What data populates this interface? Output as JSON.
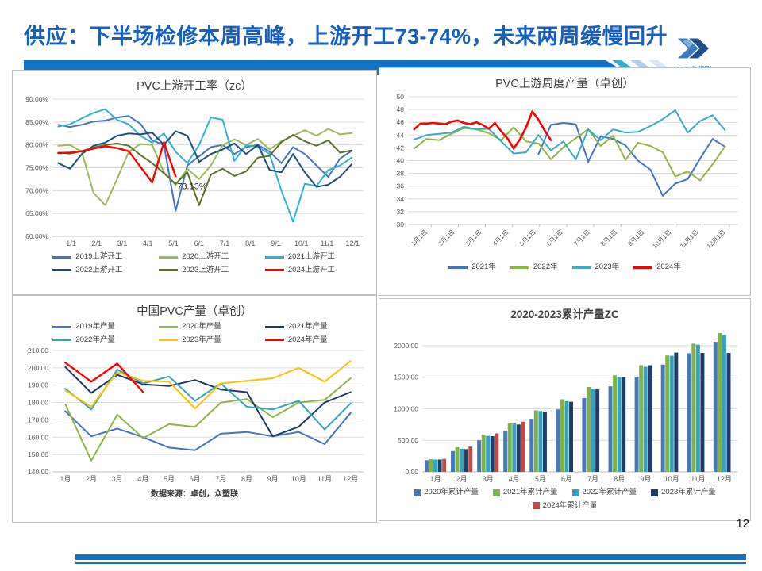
{
  "slide": {
    "title": "供应：下半场检修本周高峰，上游开工73-74%，未来两周缓慢回升",
    "page_number": "12",
    "logo_text": "UPA众塑联",
    "accent_color": "#1273C4"
  },
  "chart_data": [
    {
      "type": "line",
      "title": "PVC上游开工率（zc）",
      "ylabel": "",
      "xlabel": "",
      "ylim": [
        60,
        90
      ],
      "ytick_step": 5,
      "ytick_format": "pct",
      "xlim": [
        0,
        53
      ],
      "x_tick_labels": [
        "1/1",
        "2/1",
        "3/1",
        "4/1",
        "5/1",
        "6/1",
        "7/1",
        "8/1",
        "9/1",
        "10/1",
        "11/1",
        "12/1"
      ],
      "x_tick_start": 1,
      "x_tick_step": 4.36,
      "annotation": {
        "text": "73.13%",
        "x": 21,
        "y": 73.13,
        "dx": 2,
        "dy": 16
      },
      "legend": {
        "position": "bottom",
        "swatch": "line",
        "cols": 3
      },
      "series": [
        {
          "name": "2019上游开工",
          "color": "#4472C4",
          "x0": 1,
          "dx": 2,
          "y": [
            84.4,
            83.9,
            84.4,
            85.1,
            85.3,
            86.0,
            86.3,
            84.6,
            81.0,
            80.0,
            65.6,
            75.5,
            77.5,
            79.5,
            80.0,
            78.0,
            79.5,
            80.0,
            78.5,
            76.0,
            79.5,
            78.0,
            75.5,
            73.0,
            77.0,
            78.7
          ]
        },
        {
          "name": "2020上游开工",
          "color": "#9BBB59",
          "x0": 1,
          "dx": 2,
          "y": [
            79.8,
            80.0,
            78.5,
            69.5,
            66.8,
            72.5,
            78.5,
            80.2,
            80.0,
            74.0,
            71.2,
            74.8,
            72.5,
            75.5,
            80.0,
            81.2,
            80.0,
            81.3,
            79.0,
            80.8,
            82.0,
            83.2,
            82.0,
            83.5,
            82.3,
            82.6
          ]
        },
        {
          "name": "2021上游开工",
          "color": "#2FB3D4",
          "x0": 1,
          "dx": 2,
          "y": [
            84.0,
            84.5,
            85.8,
            87.0,
            87.8,
            85.5,
            84.5,
            82.0,
            80.5,
            82.5,
            78.5,
            76.0,
            80.0,
            86.0,
            85.5,
            76.5,
            80.0,
            79.5,
            78.0,
            70.0,
            63.2,
            71.5,
            71.0,
            74.5,
            75.5,
            77.2
          ]
        },
        {
          "name": "2022上游开工",
          "color": "#1F4E79",
          "x0": 1,
          "dx": 2,
          "y": [
            76.0,
            74.8,
            78.0,
            79.8,
            80.5,
            82.0,
            82.5,
            82.3,
            82.7,
            80.0,
            83.0,
            82.0,
            76.3,
            78.0,
            79.0,
            80.3,
            78.0,
            80.0,
            74.5,
            74.0,
            78.0,
            74.0,
            70.8,
            71.3,
            73.0,
            75.8
          ]
        },
        {
          "name": "2023上游开工",
          "color": "#5A7228",
          "x0": 1,
          "dx": 2,
          "y": [
            78.3,
            78.1,
            78.6,
            79.4,
            80.0,
            80.3,
            79.8,
            77.8,
            76.0,
            73.8,
            71.5,
            74.0,
            66.8,
            73.5,
            74.8,
            73.2,
            74.2,
            77.2,
            77.6,
            80.6,
            82.2,
            80.8,
            79.8,
            81.0,
            78.3,
            78.8
          ]
        },
        {
          "name": "2024上游开工",
          "color": "#FF0000",
          "x0": 1,
          "dx": 2,
          "width": 2.4,
          "y": [
            78.2,
            78.3,
            78.6,
            79.2,
            79.7,
            79.3,
            78.6,
            75.2,
            71.8,
            80.6,
            73.13
          ]
        }
      ]
    },
    {
      "type": "line",
      "title": "PVC上游周度产量（卓创）",
      "ylim": [
        30,
        50
      ],
      "ytick_step": 2,
      "ytick_format": "int",
      "xlim": [
        0,
        53
      ],
      "x_rotate": true,
      "x_tick_marks": true,
      "x_tick_labels": [
        "1月1日",
        "2月1日",
        "3月1日",
        "4月1日",
        "5月1日",
        "6月1日",
        "7月1日",
        "8月1日",
        "9月1日",
        "10月1日",
        "11月1日",
        "12月1日"
      ],
      "x_tick_start": 1,
      "x_tick_step": 4.36,
      "legend": {
        "position": "bottom",
        "swatch": "line",
        "cols": 0
      },
      "series": [
        {
          "name": "2021年",
          "color": "#4472C4",
          "x0": 21,
          "dx": 2,
          "y": [
            41.0,
            45.6,
            45.9,
            45.7,
            39.8,
            43.8,
            43.4,
            42.4,
            40.0,
            38.6,
            34.5,
            36.4,
            37.1,
            40.3,
            43.4,
            42.2
          ]
        },
        {
          "name": "2022年",
          "color": "#8DB645",
          "x0": 1,
          "dx": 2,
          "y": [
            41.9,
            43.4,
            43.2,
            44.2,
            45.1,
            44.9,
            44.3,
            43.2,
            45.2,
            43.0,
            42.7,
            40.2,
            42.1,
            43.5,
            44.9,
            42.3,
            43.9,
            40.1,
            42.8,
            42.3,
            41.3,
            37.5,
            38.3,
            36.9,
            39.4,
            42.2
          ]
        },
        {
          "name": "2023年",
          "color": "#3BA8C4",
          "x0": 1,
          "dx": 2,
          "y": [
            43.3,
            44.0,
            44.2,
            44.4,
            45.3,
            44.9,
            45.0,
            43.0,
            41.1,
            41.3,
            44.0,
            41.6,
            43.0,
            40.2,
            44.9,
            43.2,
            44.9,
            44.4,
            44.5,
            45.4,
            46.5,
            47.9,
            44.4,
            46.2,
            47.1,
            44.8
          ]
        },
        {
          "name": "2024年",
          "color": "#FF0000",
          "x0": 1,
          "dx": 1,
          "width": 2.6,
          "y": [
            44.9,
            45.8,
            45.8,
            45.9,
            45.8,
            45.7,
            46.1,
            46.3,
            45.9,
            45.7,
            46.0,
            45.6,
            45.0,
            45.9,
            44.6,
            43.5,
            41.9,
            43.3,
            45.2,
            47.7,
            46.4,
            44.7,
            43.2
          ]
        }
      ]
    },
    {
      "type": "line",
      "title": "中国PVC产量（卓创）",
      "source": "数据来源：卓创，众塑联",
      "ylim": [
        140,
        210
      ],
      "ytick_step": 10,
      "ytick_format": "dec",
      "categories": [
        "1月",
        "2月",
        "3月",
        "4月",
        "5月",
        "6月",
        "7月",
        "8月",
        "9月",
        "10月",
        "11月",
        "12月"
      ],
      "legend": {
        "position": "top",
        "swatch": "line",
        "cols": 3
      },
      "series": [
        {
          "name": "2019年产量",
          "color": "#4472C4",
          "y": [
            175,
            160.5,
            165,
            160,
            154,
            152.5,
            162,
            163,
            160.5,
            163,
            156,
            174
          ]
        },
        {
          "name": "2020年产量",
          "color": "#8DB645",
          "y": [
            179,
            146.5,
            173,
            159.5,
            167.5,
            166,
            180,
            182,
            171.5,
            180,
            181.5,
            194
          ]
        },
        {
          "name": "2021年产量",
          "color": "#1F3864",
          "y": [
            200.5,
            185.5,
            196,
            190.5,
            189.5,
            193,
            187.5,
            186,
            160.5,
            166,
            180,
            186
          ]
        },
        {
          "name": "2022年产量",
          "color": "#31A3BD",
          "y": [
            188,
            176,
            199,
            191,
            195,
            181,
            191,
            177.5,
            176,
            181,
            164.5,
            179.5
          ]
        },
        {
          "name": "2023年产量",
          "color": "#FFC000",
          "y": [
            187,
            177.5,
            197.5,
            192.5,
            192,
            176.5,
            191,
            192.5,
            194,
            200,
            192,
            204
          ]
        },
        {
          "name": "2024年产量",
          "color": "#FF0000",
          "width": 2.4,
          "y": [
            203,
            192,
            202.5,
            186
          ]
        }
      ]
    },
    {
      "type": "bar",
      "title": "2020-2023累计产量ZC",
      "ylim": [
        0,
        2300
      ],
      "yticks": [
        0,
        500,
        1000,
        1500,
        2000
      ],
      "ytick_format": "dec",
      "categories": [
        "1月",
        "2月",
        "3月",
        "4月",
        "5月",
        "6月",
        "7月",
        "8月",
        "9月",
        "10月",
        "11月",
        "12月"
      ],
      "legend": {
        "position": "bottom",
        "swatch": "square",
        "cols": 0
      },
      "series": [
        {
          "name": "2020年累计产量",
          "color": "#4779B8",
          "y": [
            185,
            330,
            500,
            655,
            840,
            990,
            1170,
            1355,
            1510,
            1700,
            1880,
            2060
          ]
        },
        {
          "name": "2021年累计产量",
          "color": "#7CB24A",
          "y": [
            200,
            390,
            590,
            780,
            975,
            1150,
            1345,
            1530,
            1690,
            1845,
            2030,
            2200
          ]
        },
        {
          "name": "2022年累计产量",
          "color": "#35A3C0",
          "y": [
            195,
            365,
            570,
            765,
            965,
            1120,
            1320,
            1505,
            1665,
            1840,
            2015,
            2170
          ]
        },
        {
          "name": "2023年累计产量",
          "color": "#1F3D68",
          "y": [
            195,
            360,
            565,
            750,
            955,
            1110,
            1305,
            1500,
            1690,
            1890,
            1885,
            1885
          ]
        },
        {
          "name": "2024年累计产量",
          "color": "#BE4B48",
          "y": [
            205,
            400,
            610,
            795
          ]
        }
      ]
    }
  ]
}
